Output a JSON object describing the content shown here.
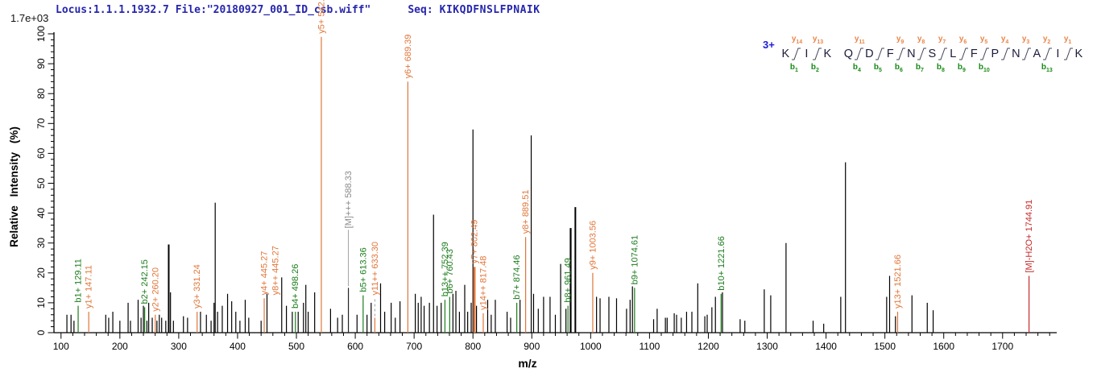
{
  "header": {
    "locus_file": "Locus:1.1.1.1932.7 File:\"20180927_001_ID_csb.wiff\"",
    "seq_label": "Seq:",
    "seq_value": "KIKQDFNSLFPNAIK"
  },
  "y_axis": {
    "title": "Relative Intensity (%)",
    "scale_note": "1.7e+03",
    "ticks": [
      0,
      10,
      20,
      30,
      40,
      50,
      60,
      70,
      80,
      90,
      100
    ]
  },
  "x_axis": {
    "title": "m/z",
    "ticks": [
      100,
      200,
      300,
      400,
      500,
      600,
      700,
      800,
      900,
      1000,
      1100,
      1200,
      1300,
      1400,
      1500,
      1600,
      1700
    ],
    "min": 88,
    "max": 1792
  },
  "sequence": {
    "charge": "3+",
    "residues": [
      "K",
      "I",
      "K",
      "Q",
      "D",
      "F",
      "N",
      "S",
      "L",
      "F",
      "P",
      "N",
      "A",
      "I",
      "K"
    ],
    "cuts": [
      {
        "after": 1,
        "y": 14,
        "b": 1
      },
      {
        "after": 2,
        "y": 13,
        "b": 2
      },
      {
        "after": 4,
        "y": 11,
        "b": 4
      },
      {
        "after": 5,
        "y": null,
        "b": 5
      },
      {
        "after": 6,
        "y": 9,
        "b": 6
      },
      {
        "after": 7,
        "y": 8,
        "b": 7
      },
      {
        "after": 8,
        "y": 7,
        "b": 8
      },
      {
        "after": 9,
        "y": 6,
        "b": 9
      },
      {
        "after": 10,
        "y": 5,
        "b": 10
      },
      {
        "after": 11,
        "y": 4,
        "b": null
      },
      {
        "after": 12,
        "y": 3,
        "b": null
      },
      {
        "after": 13,
        "y": 2,
        "b": 13
      },
      {
        "after": 14,
        "y": 1,
        "b": null
      }
    ]
  },
  "chart_data": {
    "type": "bar",
    "subtype": "ms2-fragment-spectrum",
    "xlabel": "m/z",
    "ylabel": "Relative Intensity (%)",
    "xlim": [
      88,
      1792
    ],
    "ylim": [
      0,
      100
    ],
    "intensity_full_scale": "1.7e+03",
    "colors": {
      "b_ion": "#1c7c1c",
      "y_ion": "#e0763a",
      "precursor_label": "#8a8a8a",
      "neutral_loss": "#c62828",
      "unassigned": "#000000"
    },
    "labeled_peaks": [
      {
        "label": "b1+ 129.11",
        "mz": 129.11,
        "intensity": 9,
        "ion": "b"
      },
      {
        "label": "y1+ 147.11",
        "mz": 147.11,
        "intensity": 7,
        "ion": "y"
      },
      {
        "label": "b2+ 242.15",
        "mz": 242.15,
        "intensity": 8.5,
        "ion": "b"
      },
      {
        "label": "y2+ 260.20",
        "mz": 260.2,
        "intensity": 6,
        "ion": "y"
      },
      {
        "label": "y3+ 331.24",
        "mz": 331.24,
        "intensity": 7,
        "ion": "y"
      },
      {
        "label": "y4+ 445.27",
        "mz": 445.27,
        "intensity": 11.5,
        "ion": "y"
      },
      {
        "label": "y8++ 445.27",
        "mz": 445.27,
        "intensity": 11.5,
        "ion": "y",
        "label_dx": 14,
        "skip_line": true
      },
      {
        "label": "b4+ 498.26",
        "mz": 498.26,
        "intensity": 7,
        "ion": "b"
      },
      {
        "label": "y5+ 542.33",
        "mz": 542.33,
        "intensity": 99,
        "ion": "y"
      },
      {
        "label": "[M]+++ 588.33",
        "mz": 588.33,
        "intensity": 15,
        "ion": "precursor",
        "pointer": 70
      },
      {
        "label": "b5+ 613.36",
        "mz": 613.36,
        "intensity": 12.5,
        "ion": "b"
      },
      {
        "label": "y11++ 633.30",
        "mz": 633.3,
        "intensity": 5,
        "ion": "y",
        "pointer": 24,
        "dashed": true
      },
      {
        "label": "y6+ 689.39",
        "mz": 689.39,
        "intensity": 84,
        "ion": "y"
      },
      {
        "label": "b13++ 752.39",
        "mz": 752.39,
        "intensity": 11,
        "ion": "b"
      },
      {
        "label": "b6+ 760.43",
        "mz": 760.43,
        "intensity": 12,
        "ion": "b"
      },
      {
        "label": "y7+ 802.49",
        "mz": 802.49,
        "intensity": 22,
        "ion": "y",
        "width": 2.8
      },
      {
        "label": "y14++ 817.48",
        "mz": 817.48,
        "intensity": 6.5,
        "ion": "y"
      },
      {
        "label": "b7+ 874.46",
        "mz": 874.46,
        "intensity": 10,
        "ion": "b"
      },
      {
        "label": "y8+ 889.51",
        "mz": 889.51,
        "intensity": 32,
        "ion": "y"
      },
      {
        "label": "b8+ 961.49",
        "mz": 961.49,
        "intensity": 9,
        "ion": "b"
      },
      {
        "label": "y9+ 1003.56",
        "mz": 1003.56,
        "intensity": 20,
        "ion": "y"
      },
      {
        "label": "b9+ 1074.61",
        "mz": 1074.61,
        "intensity": 15,
        "ion": "b"
      },
      {
        "label": "b10+ 1221.66",
        "mz": 1221.66,
        "intensity": 13,
        "ion": "b"
      },
      {
        "label": "y13+ 1521.66",
        "mz": 1521.66,
        "intensity": 7,
        "ion": "y"
      },
      {
        "label": "[M]-H2O+ 1744.91",
        "mz": 1744.91,
        "intensity": 19,
        "ion": "mloss"
      }
    ],
    "unlabeled_peaks": [
      [
        110,
        6
      ],
      [
        117,
        6
      ],
      [
        122,
        4
      ],
      [
        176,
        6
      ],
      [
        181,
        5
      ],
      [
        188,
        7
      ],
      [
        200,
        4
      ],
      [
        214,
        10
      ],
      [
        218,
        4
      ],
      [
        231,
        11
      ],
      [
        236,
        5
      ],
      [
        240,
        9
      ],
      [
        246,
        4
      ],
      [
        249,
        10
      ],
      [
        255,
        5
      ],
      [
        263,
        4
      ],
      [
        267,
        6
      ],
      [
        271,
        5
      ],
      [
        278,
        4
      ],
      [
        283,
        29.5,
        2
      ],
      [
        286,
        13.5
      ],
      [
        291,
        4
      ],
      [
        308,
        5.5
      ],
      [
        315,
        5
      ],
      [
        337,
        7
      ],
      [
        347,
        6
      ],
      [
        355,
        4
      ],
      [
        360,
        10
      ],
      [
        362,
        43.5
      ],
      [
        366,
        7
      ],
      [
        374,
        9
      ],
      [
        383,
        13
      ],
      [
        390,
        10.5
      ],
      [
        397,
        7
      ],
      [
        404,
        4
      ],
      [
        413,
        11
      ],
      [
        419,
        5
      ],
      [
        440,
        4
      ],
      [
        450,
        13
      ],
      [
        475,
        18.5
      ],
      [
        483,
        9
      ],
      [
        493,
        7
      ],
      [
        503,
        7
      ],
      [
        512,
        10
      ],
      [
        516,
        16
      ],
      [
        520,
        7
      ],
      [
        531,
        13.5
      ],
      [
        558,
        8
      ],
      [
        570,
        5
      ],
      [
        578,
        6
      ],
      [
        603,
        6
      ],
      [
        620,
        6
      ],
      [
        627,
        10
      ],
      [
        643,
        16.5
      ],
      [
        650,
        7
      ],
      [
        661,
        10
      ],
      [
        668,
        5
      ],
      [
        676,
        10.5
      ],
      [
        702,
        13
      ],
      [
        707,
        10
      ],
      [
        712,
        12
      ],
      [
        717,
        9
      ],
      [
        726,
        10
      ],
      [
        733,
        39.5
      ],
      [
        739,
        9
      ],
      [
        746,
        10
      ],
      [
        766,
        13
      ],
      [
        771,
        14
      ],
      [
        777,
        7
      ],
      [
        786,
        16
      ],
      [
        791,
        7
      ],
      [
        797,
        10
      ],
      [
        800,
        68
      ],
      [
        806,
        9
      ],
      [
        825,
        11
      ],
      [
        831,
        6
      ],
      [
        838,
        11
      ],
      [
        858,
        7
      ],
      [
        864,
        5
      ],
      [
        880,
        11
      ],
      [
        899,
        66
      ],
      [
        903,
        13
      ],
      [
        911,
        8
      ],
      [
        920,
        12
      ],
      [
        931,
        12
      ],
      [
        940,
        6
      ],
      [
        949,
        23
      ],
      [
        958,
        8
      ],
      [
        966,
        35,
        2.2
      ],
      [
        974,
        42,
        2
      ],
      [
        1010,
        12
      ],
      [
        1016,
        11.5
      ],
      [
        1031,
        12
      ],
      [
        1044,
        11.5
      ],
      [
        1061,
        8
      ],
      [
        1067,
        11
      ],
      [
        1071,
        15.5
      ],
      [
        1107,
        4.5
      ],
      [
        1113,
        8
      ],
      [
        1127,
        5
      ],
      [
        1130,
        5
      ],
      [
        1142,
        6.5
      ],
      [
        1146,
        6
      ],
      [
        1154,
        5
      ],
      [
        1163,
        7
      ],
      [
        1172,
        7
      ],
      [
        1182,
        16.5
      ],
      [
        1194,
        5.5
      ],
      [
        1198,
        6
      ],
      [
        1206,
        8.5
      ],
      [
        1212,
        12
      ],
      [
        1224,
        13.5
      ],
      [
        1254,
        4.5
      ],
      [
        1262,
        4
      ],
      [
        1295,
        14.5
      ],
      [
        1306,
        12.5
      ],
      [
        1332,
        30
      ],
      [
        1378,
        4
      ],
      [
        1396,
        3
      ],
      [
        1425,
        12
      ],
      [
        1433,
        57
      ],
      [
        1503,
        12
      ],
      [
        1508,
        19
      ],
      [
        1518,
        5.5
      ],
      [
        1546,
        12.5
      ],
      [
        1572,
        10
      ],
      [
        1582,
        7.5
      ]
    ]
  }
}
